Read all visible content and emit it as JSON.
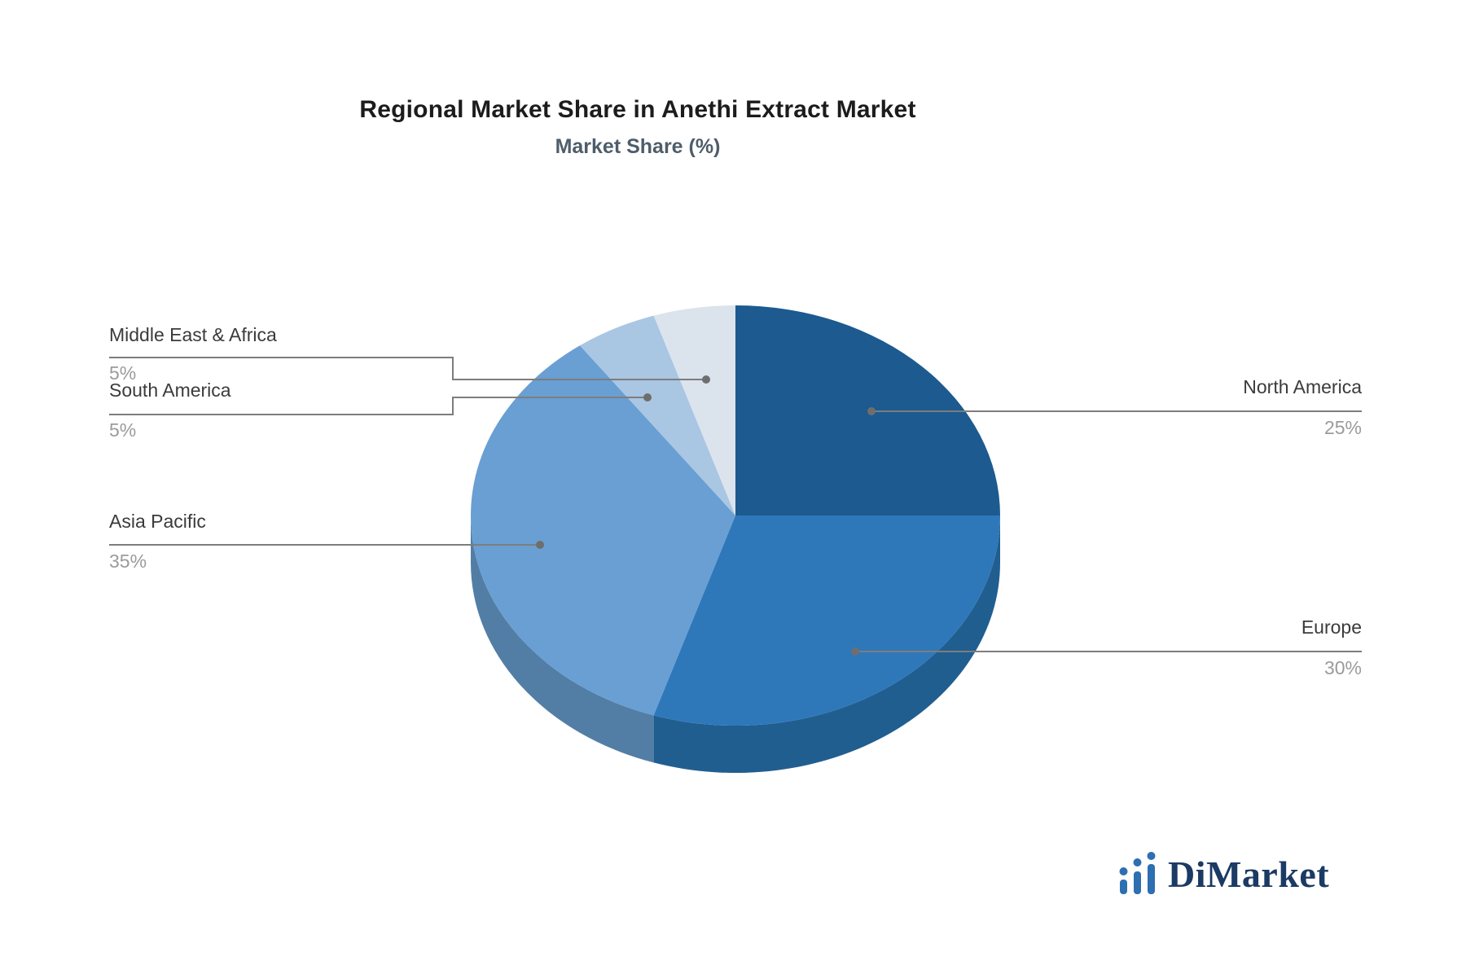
{
  "header": {
    "title": "Regional Market Share in Anethi Extract Market",
    "subtitle": "Market Share (%)"
  },
  "chart_data": {
    "type": "pie",
    "style": "3d",
    "title": "Regional Market Share in Anethi Extract Market",
    "subtitle": "Market Share (%)",
    "unit": "%",
    "start_angle_deg": 0,
    "direction": "clockwise",
    "legend_position": "callout-labels",
    "categories": [
      "North America",
      "Europe",
      "Asia Pacific",
      "South America",
      "Middle East & Africa"
    ],
    "values": [
      25,
      30,
      35,
      5,
      5
    ],
    "slices": [
      {
        "label": "North America",
        "value": 25,
        "pct_text": "25%",
        "color": "#1c5a90",
        "side_color": "#164a77",
        "label_side": "right"
      },
      {
        "label": "Europe",
        "value": 30,
        "pct_text": "30%",
        "color": "#2e78ba",
        "side_color": "#215e90",
        "label_side": "right"
      },
      {
        "label": "Asia Pacific",
        "value": 35,
        "pct_text": "35%",
        "color": "#699fd3",
        "side_color": "#527ea6",
        "label_side": "left"
      },
      {
        "label": "South America",
        "value": 5,
        "pct_text": "5%",
        "color": "#a9c6e3",
        "side_color": "#8aa9c6",
        "label_side": "left"
      },
      {
        "label": "Middle East & Africa",
        "value": 5,
        "pct_text": "5%",
        "color": "#dbe3ed",
        "side_color": "#b9c3d1",
        "label_side": "left"
      }
    ]
  },
  "colors": {
    "background": "#ffffff",
    "title": "#1c1c1c",
    "subtitle": "#4e5d6a",
    "label_text": "#3b3b3b",
    "percent_text": "#9b9b9b",
    "leader_line": "#7d7d7d",
    "leader_dot": "#6e6e6e"
  },
  "branding": {
    "logo_text": "DiMarket",
    "logo_icon": "bar-chart-dots-icon",
    "logo_text_color": "#1b3a64",
    "logo_icon_color": "#2d6fb0"
  }
}
